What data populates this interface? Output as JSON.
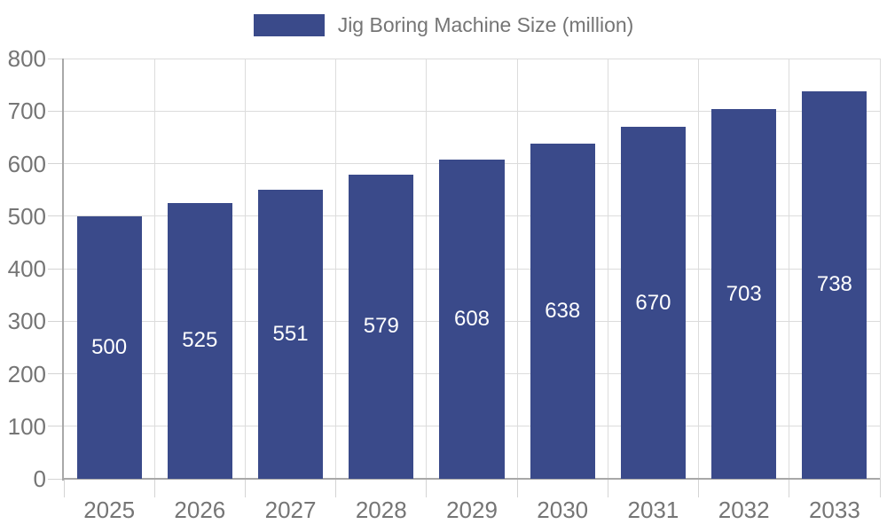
{
  "chart_data": {
    "type": "bar",
    "title": "Jig Boring Machine Size (million)",
    "legend": [
      "Jig Boring Machine Size (million)"
    ],
    "legend_position": "top-center",
    "categories": [
      "2025",
      "2026",
      "2027",
      "2028",
      "2029",
      "2030",
      "2031",
      "2032",
      "2033"
    ],
    "values": [
      500,
      525,
      551,
      579,
      608,
      638,
      670,
      703,
      738
    ],
    "xlabel": "",
    "ylabel": "",
    "ylim": [
      0,
      800
    ],
    "yticks": [
      0,
      100,
      200,
      300,
      400,
      500,
      600,
      700,
      800
    ],
    "grid": "horizontal and vertical light gridlines",
    "bar_value_labels": "centered inside bars",
    "colors": {
      "bar": "#3A4A8A",
      "bar_label": "#FFFFFF",
      "axis_text": "#757575",
      "legend_text": "#757575",
      "grid_line": "#DCDCDC",
      "tick_line": "#D4D4D4",
      "axis_line": "#A8A8A8"
    }
  }
}
